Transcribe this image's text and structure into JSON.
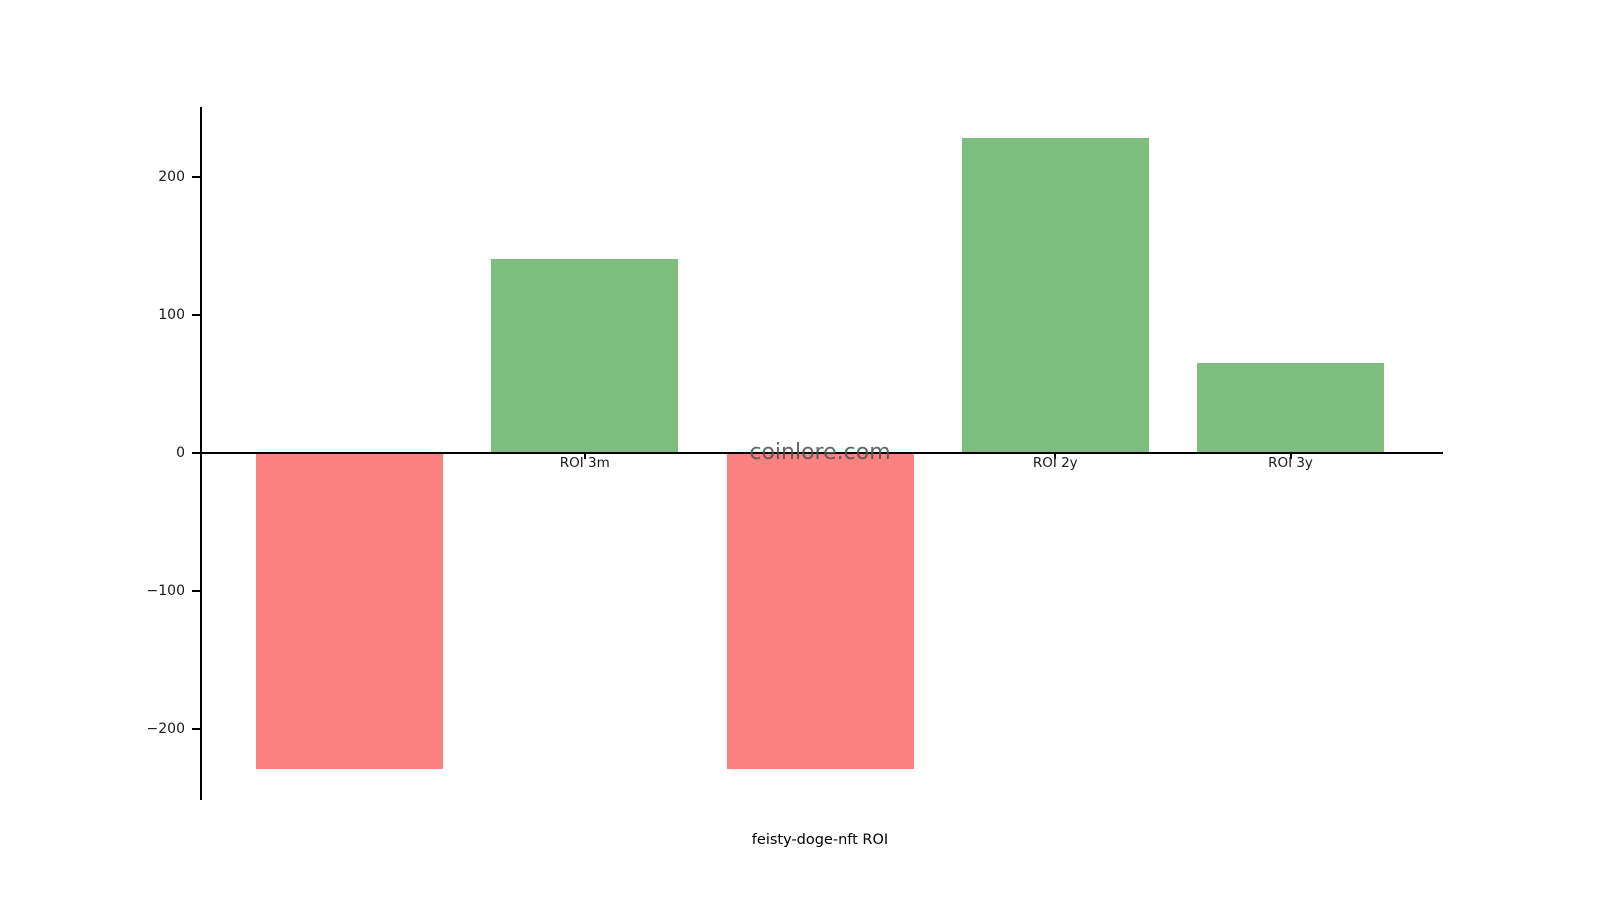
{
  "chart_data": {
    "type": "bar",
    "title": "",
    "xlabel": "feisty-doge-nft ROI",
    "ylabel": "",
    "watermark": "coinlore.com",
    "categories": [
      "",
      "ROI 3m",
      "",
      "ROI 2y",
      "ROI 3y"
    ],
    "values": [
      -229,
      140,
      -229,
      228,
      65
    ],
    "y_ticks": [
      {
        "value": 200,
        "label": "200"
      },
      {
        "value": 100,
        "label": "100"
      },
      {
        "value": 0,
        "label": "0"
      },
      {
        "value": -100,
        "label": "−100"
      },
      {
        "value": -200,
        "label": "−200"
      }
    ],
    "ylim": [
      -251.8,
      250.4
    ],
    "grid": false,
    "legend": null,
    "colors": {
      "positive": "#7dbd7d",
      "negative": "#fc8181",
      "axis": "#000000",
      "tick_label": "#1a1a1a",
      "watermark": "#555555",
      "background": "#ffffff"
    }
  }
}
